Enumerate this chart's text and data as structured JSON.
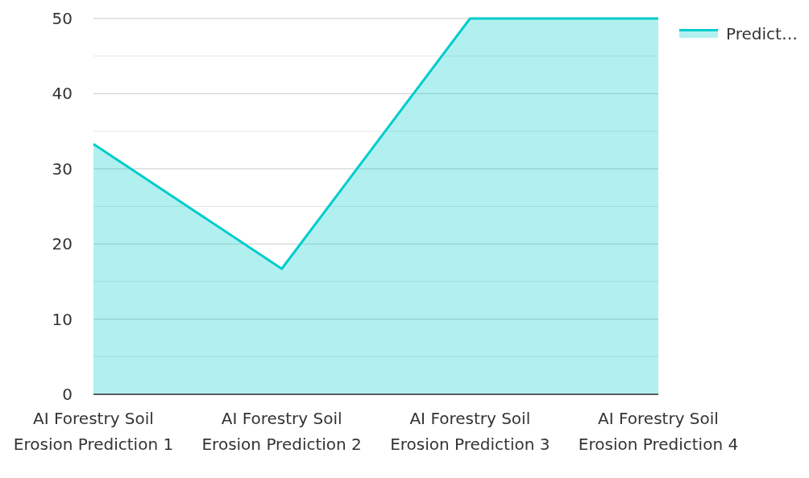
{
  "chart_data": {
    "type": "area",
    "categories": [
      "AI Forestry Soil Erosion Prediction 1",
      "AI Forestry Soil Erosion Prediction 2",
      "AI Forestry Soil Erosion Prediction 3",
      "AI Forestry Soil Erosion Prediction 4"
    ],
    "series": [
      {
        "name": "Predict…",
        "color": "#00cccc",
        "values": [
          33.3,
          16.7,
          50,
          50
        ]
      }
    ],
    "ylim": [
      0,
      50
    ],
    "yticks": [
      0,
      {
        "value": 5,
        "label": null
      },
      10,
      {
        "value": 15,
        "label": null
      },
      20,
      {
        "value": 25,
        "label": null
      },
      30,
      {
        "value": 35,
        "label": null
      },
      40,
      {
        "value": 45,
        "label": null
      },
      50
    ],
    "grid": "y",
    "legend": "top right"
  }
}
